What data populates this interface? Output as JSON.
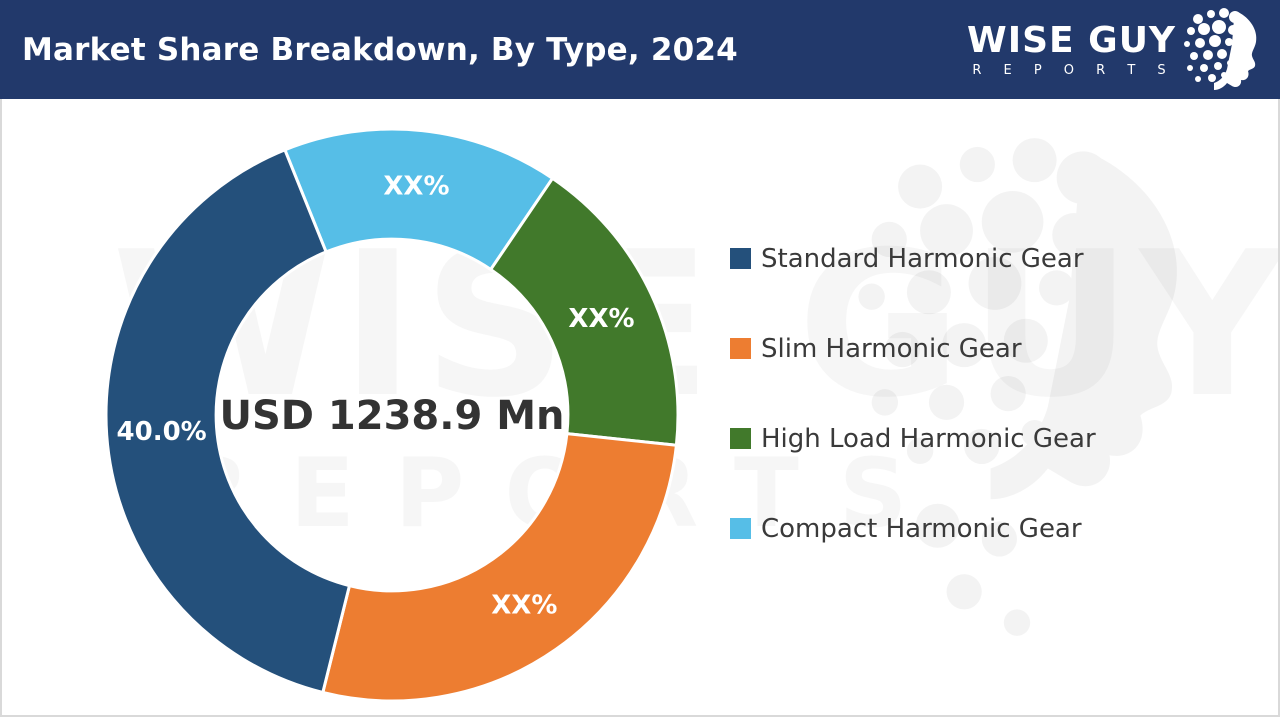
{
  "header": {
    "title": "Market Share Breakdown, By Type, 2024",
    "logo": {
      "line1": "WISE GUY",
      "line2": "R E P O R T S"
    }
  },
  "watermark": {
    "line1": "WISE GUY",
    "line2": "REPORTS"
  },
  "chart_data": {
    "type": "pie",
    "subtype": "donut",
    "title": "Market Share Breakdown, By Type, 2024",
    "center_label": "USD 1238.9 Mn",
    "start_angle_deg": -22,
    "inner_radius_ratio": 0.615,
    "slices": [
      {
        "name": "Compact Harmonic Gear",
        "label": "XX%",
        "value": 15.6,
        "color": "#56BEE7"
      },
      {
        "name": "High Load Harmonic Gear",
        "label": "XX%",
        "value": 17.2,
        "color": "#41792B"
      },
      {
        "name": "Slim Harmonic Gear",
        "label": "XX%",
        "value": 27.2,
        "color": "#ED7D31"
      },
      {
        "name": "Standard Harmonic Gear",
        "label": "40.0%",
        "value": 40.0,
        "color": "#24507B"
      }
    ],
    "legend": [
      {
        "label": "Standard Harmonic Gear",
        "color": "#24507B"
      },
      {
        "label": "Slim Harmonic Gear",
        "color": "#ED7D31"
      },
      {
        "label": "High Load Harmonic Gear",
        "color": "#41792B"
      },
      {
        "label": "Compact Harmonic Gear",
        "color": "#56BEE7"
      }
    ],
    "legend_position": "right",
    "value_unit": "percent"
  }
}
